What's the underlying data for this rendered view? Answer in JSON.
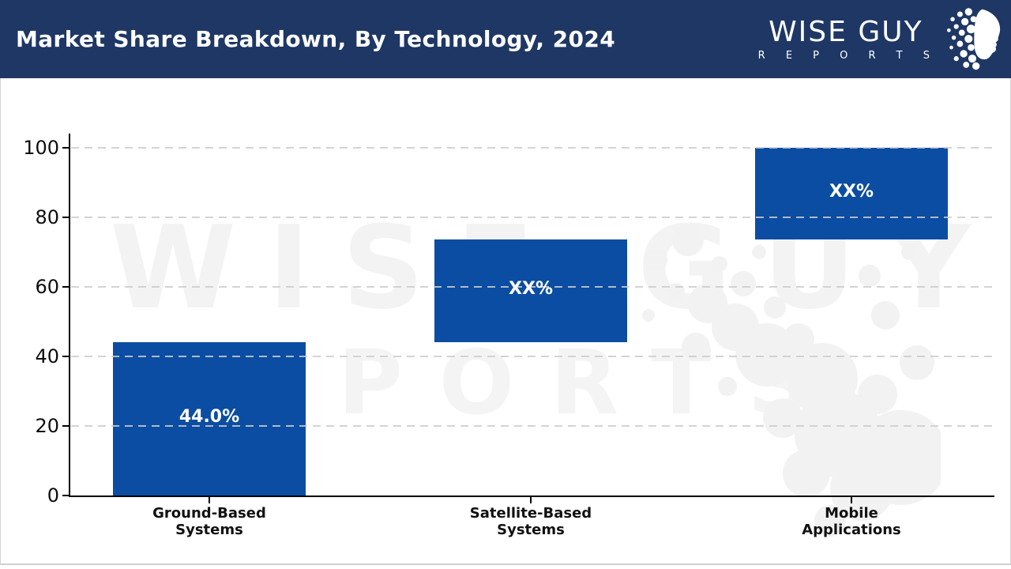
{
  "header": {
    "title": "Market Share Breakdown, By Technology, 2024",
    "logo": {
      "line1": "WISE GUY",
      "line2": "R E P O R T S"
    }
  },
  "watermark": {
    "line1": "WISE GUY",
    "line2": "REPORTS"
  },
  "chart_data": {
    "type": "bar",
    "subtype": "waterfall",
    "title": "Market Share Breakdown, By Technology, 2024",
    "categories": [
      [
        "Ground-Based",
        "Systems"
      ],
      [
        "Satellite-Based",
        "Systems"
      ],
      [
        "Mobile",
        "Applications"
      ]
    ],
    "bars": [
      {
        "start": 0,
        "end": 44.0,
        "label": "44.0%"
      },
      {
        "start": 44.0,
        "end": 73.5,
        "label": "XX%"
      },
      {
        "start": 73.5,
        "end": 100.0,
        "label": "XX%"
      }
    ],
    "ylim": [
      0,
      100
    ],
    "yticks": [
      0,
      20,
      40,
      60,
      80,
      100
    ],
    "grid": "horizontal-dashed",
    "legend": "none",
    "colors": {
      "bar": "#0b4da2",
      "bar_label": "#ffffff",
      "grid": "#d9d9d9",
      "axis": "#000000",
      "header_bg": "#1e3765",
      "header_text": "#ffffff",
      "watermark": "#f3f3f3"
    }
  }
}
